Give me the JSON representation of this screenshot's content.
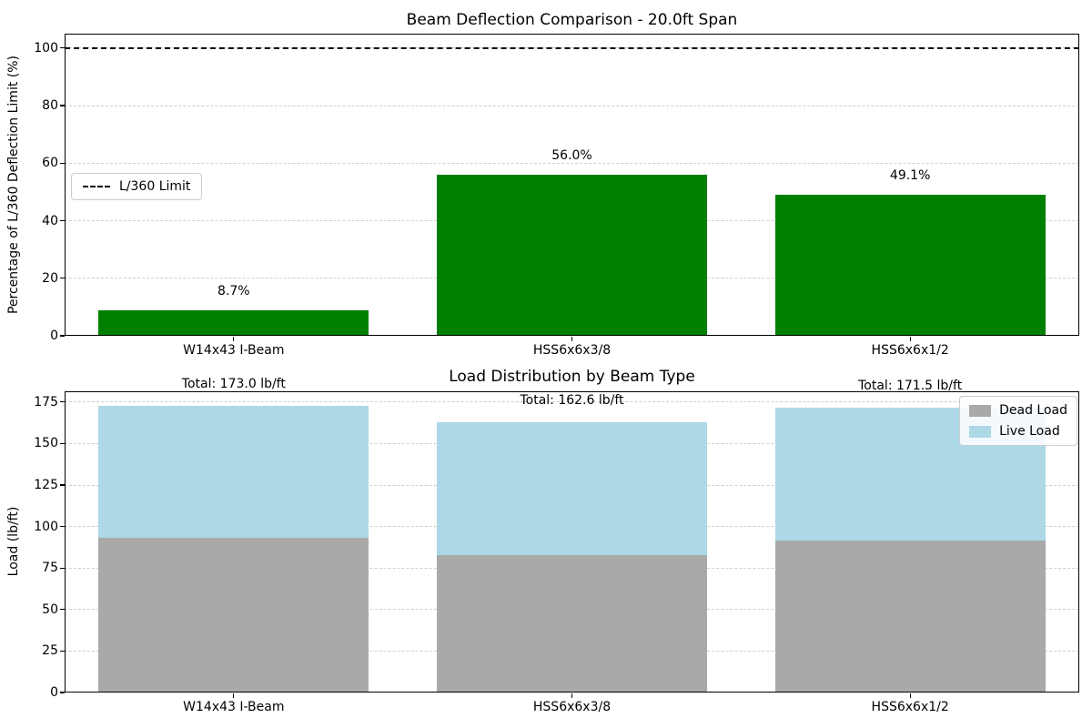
{
  "figure": {
    "background": "#ffffff"
  },
  "chart_data": [
    {
      "type": "bar",
      "title": "Beam Deflection Comparison - 20.0ft Span",
      "ylabel": "Percentage of L/360 Deflection Limit (%)",
      "xlabel": "",
      "categories": [
        "W14x43 I-Beam",
        "HSS6x6x3/8",
        "HSS6x6x1/2"
      ],
      "values": [
        8.7,
        56.0,
        49.1
      ],
      "value_labels": [
        "8.7%",
        "56.0%",
        "49.1%"
      ],
      "bar_color": "#008000",
      "ylim": [
        0,
        105
      ],
      "yticks": [
        0,
        20,
        40,
        60,
        80,
        100
      ],
      "grid": true,
      "grid_color": "#cfcfcf",
      "threshold": {
        "value": 100,
        "label": "L/360 Limit",
        "color": "#000000",
        "style": "dashed"
      },
      "legend": {
        "position": "center-left",
        "entries": [
          {
            "label": "L/360 Limit",
            "swatch": "dashed-line",
            "color": "#000000"
          }
        ]
      }
    },
    {
      "type": "stacked-bar",
      "title": "Load Distribution by Beam Type",
      "ylabel": "Load (lb/ft)",
      "xlabel": "",
      "categories": [
        "W14x43 I-Beam",
        "HSS6x6x3/8",
        "HSS6x6x1/2"
      ],
      "series": [
        {
          "name": "Dead Load",
          "color": "#a9a9a9",
          "values": [
            93.0,
            82.6,
            91.5
          ]
        },
        {
          "name": "Live Load",
          "color": "#add8e6",
          "values": [
            80.0,
            80.0,
            80.0
          ]
        }
      ],
      "totals": [
        173.0,
        162.6,
        171.5
      ],
      "total_labels": [
        "Total: 173.0 lb/ft",
        "Total: 162.6 lb/ft",
        "Total: 171.5 lb/ft"
      ],
      "ylim": [
        0,
        181.5
      ],
      "yticks": [
        0,
        25,
        50,
        75,
        100,
        125,
        150,
        175
      ],
      "grid": true,
      "grid_color": "#cfcfcf",
      "legend": {
        "position": "upper-right",
        "entries": [
          {
            "label": "Dead Load",
            "swatch": "rect",
            "color": "#a9a9a9"
          },
          {
            "label": "Live Load",
            "swatch": "rect",
            "color": "#add8e6"
          }
        ]
      }
    }
  ]
}
